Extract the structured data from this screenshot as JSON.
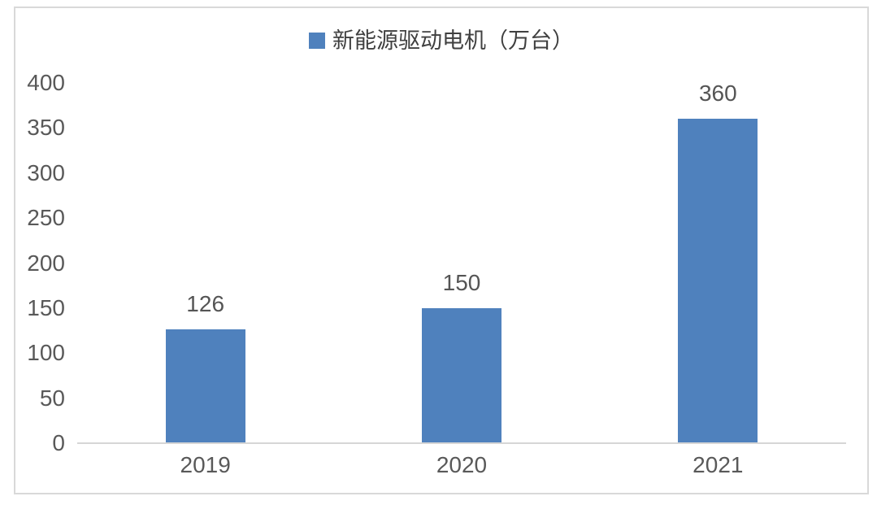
{
  "chart_data": {
    "type": "bar",
    "title": "",
    "legend": "新能源驱动电机（万台）",
    "legend_position": "top-center",
    "categories": [
      "2019",
      "2020",
      "2021"
    ],
    "values": [
      126,
      150,
      360
    ],
    "yticks": [
      0,
      50,
      100,
      150,
      200,
      250,
      300,
      350,
      400
    ],
    "ylim": [
      0,
      400
    ],
    "grid": false,
    "bar_color": "#4f81bd",
    "axis_line_color": "#d6d6d6",
    "tick_label_color": "#595959",
    "value_label_color": "#555555",
    "legend_text_color": "#404040",
    "frame_border_color": "#d9d9d9",
    "background_color": "#ffffff"
  }
}
